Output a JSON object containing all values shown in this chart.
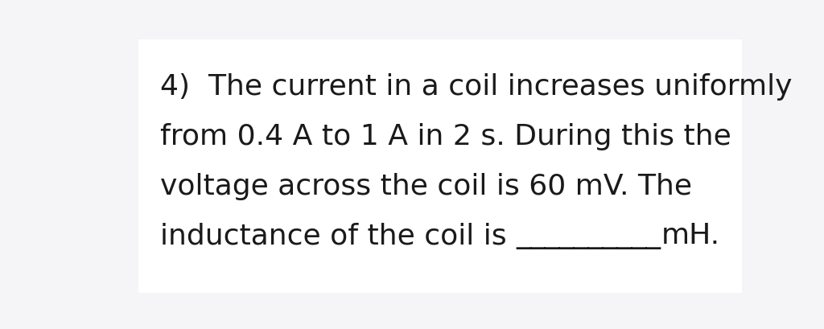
{
  "background_color": "#f5f5f7",
  "card_color": "#ffffff",
  "text_color": "#1a1a1a",
  "line1": "4)  The current in a coil increases uniformly",
  "line2": "from 0.4 A to 1 A in 2 s. During this the",
  "line3": "voltage across the coil is 60 mV. The",
  "line4_part1": "inductance of the coil is ",
  "line4_underline": "__________",
  "line4_part2": "mH.",
  "font_size": 26,
  "fig_width": 10.24,
  "fig_height": 4.09,
  "dpi": 100
}
